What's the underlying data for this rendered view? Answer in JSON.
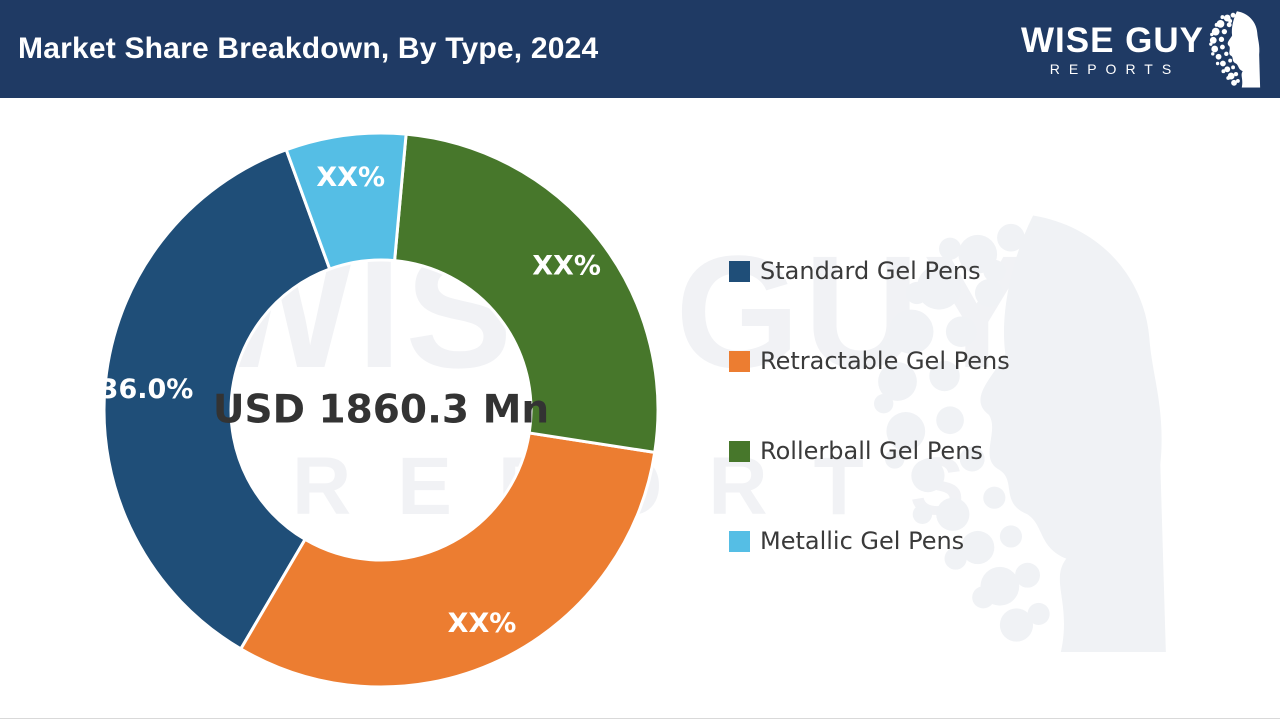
{
  "header": {
    "title": "Market Share Breakdown, By Type, 2024",
    "bg_color": "#1f3a64",
    "logo": {
      "line1": "WISE GUY",
      "line2": "REPORTS"
    }
  },
  "watermark": {
    "line1": "WISE GUY",
    "line2": "REPORTS"
  },
  "chart_data": {
    "type": "pie",
    "subtype": "donut",
    "title": "Market Share Breakdown, By Type, 2024",
    "center_text": "USD 1860.3 Mn",
    "categories": [
      "Standard Gel Pens",
      "Retractable Gel Pens",
      "Rollerball Gel Pens",
      "Metallic Gel Pens"
    ],
    "values": [
      36.0,
      31.0,
      26.0,
      7.0
    ],
    "segment_labels": [
      "36.0%",
      "XX%",
      "XX%",
      "XX%"
    ],
    "colors": [
      "#1f4e78",
      "#ec7d31",
      "#47772b",
      "#55bee5"
    ],
    "start_angle_deg": 110,
    "direction": "counterclockwise",
    "outer_radius_px": 277,
    "inner_radius_px": 150,
    "label_radius_ratio": 0.85,
    "slice_gap_color": "#ffffff",
    "legend_position": "right",
    "label_color": "#ffffff"
  },
  "legend": {
    "items": [
      {
        "label": "Standard Gel Pens",
        "color": "#1f4e78"
      },
      {
        "label": "Retractable Gel Pens",
        "color": "#ec7d31"
      },
      {
        "label": "Rollerball Gel Pens",
        "color": "#47772b"
      },
      {
        "label": "Metallic Gel Pens",
        "color": "#55bee5"
      }
    ]
  }
}
